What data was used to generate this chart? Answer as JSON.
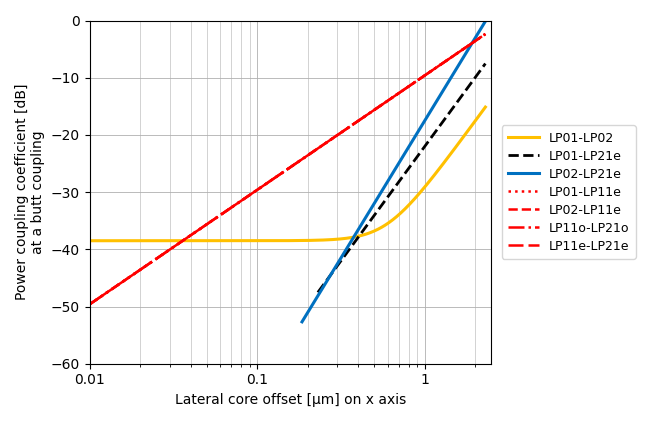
{
  "title": "",
  "xlabel": "Lateral core offset [μm] on x axis",
  "ylabel": "Power coupling coefficient [dB]\nat a butt coupling",
  "xlim": [
    0.01,
    2.5
  ],
  "ylim": [
    -60,
    0
  ],
  "yticks": [
    0,
    -10,
    -20,
    -30,
    -40,
    -50,
    -60
  ],
  "series": [
    {
      "label": "LP01-LP02",
      "color": "#FFC000",
      "linestyle": "solid",
      "linewidth": 2.2,
      "formula": "yellow_flat",
      "x_start": 0.01,
      "x_end": 2.3
    },
    {
      "label": "LP01-LP21e",
      "color": "#000000",
      "linestyle": "dashed",
      "linewidth": 2.0,
      "formula": "linear_log",
      "slope": 40.0,
      "intercept": -22.0,
      "x_start": 0.23,
      "x_end": 2.3
    },
    {
      "label": "LP02-LP21e",
      "color": "#0070C0",
      "linestyle": "solid",
      "linewidth": 2.2,
      "formula": "linear_log",
      "slope": 48.0,
      "intercept": -17.5,
      "x_start": 0.185,
      "x_end": 2.3
    },
    {
      "label": "LP01-LP11e",
      "color": "#FF0000",
      "linestyle": "dotted",
      "linewidth": 1.8,
      "formula": "linear_log",
      "slope": 20.0,
      "intercept": -9.6,
      "x_start": 0.01,
      "x_end": 2.3
    },
    {
      "label": "LP02-LP11e",
      "color": "#FF0000",
      "linestyle": "dashed",
      "linewidth": 1.8,
      "formula": "linear_log",
      "slope": 20.0,
      "intercept": -9.6,
      "x_start": 0.01,
      "x_end": 2.3
    },
    {
      "label": "LP11o-LP21o",
      "color": "#FF0000",
      "linestyle": "dashdot",
      "linewidth": 1.8,
      "formula": "linear_log",
      "slope": 20.0,
      "intercept": -9.6,
      "x_start": 0.01,
      "x_end": 2.3
    },
    {
      "label": "LP11e-LP21e",
      "color": "#FF0000",
      "linestyle": "longdash",
      "linewidth": 1.8,
      "formula": "linear_log",
      "slope": 20.0,
      "intercept": -9.6,
      "x_start": 0.01,
      "x_end": 2.3
    }
  ]
}
